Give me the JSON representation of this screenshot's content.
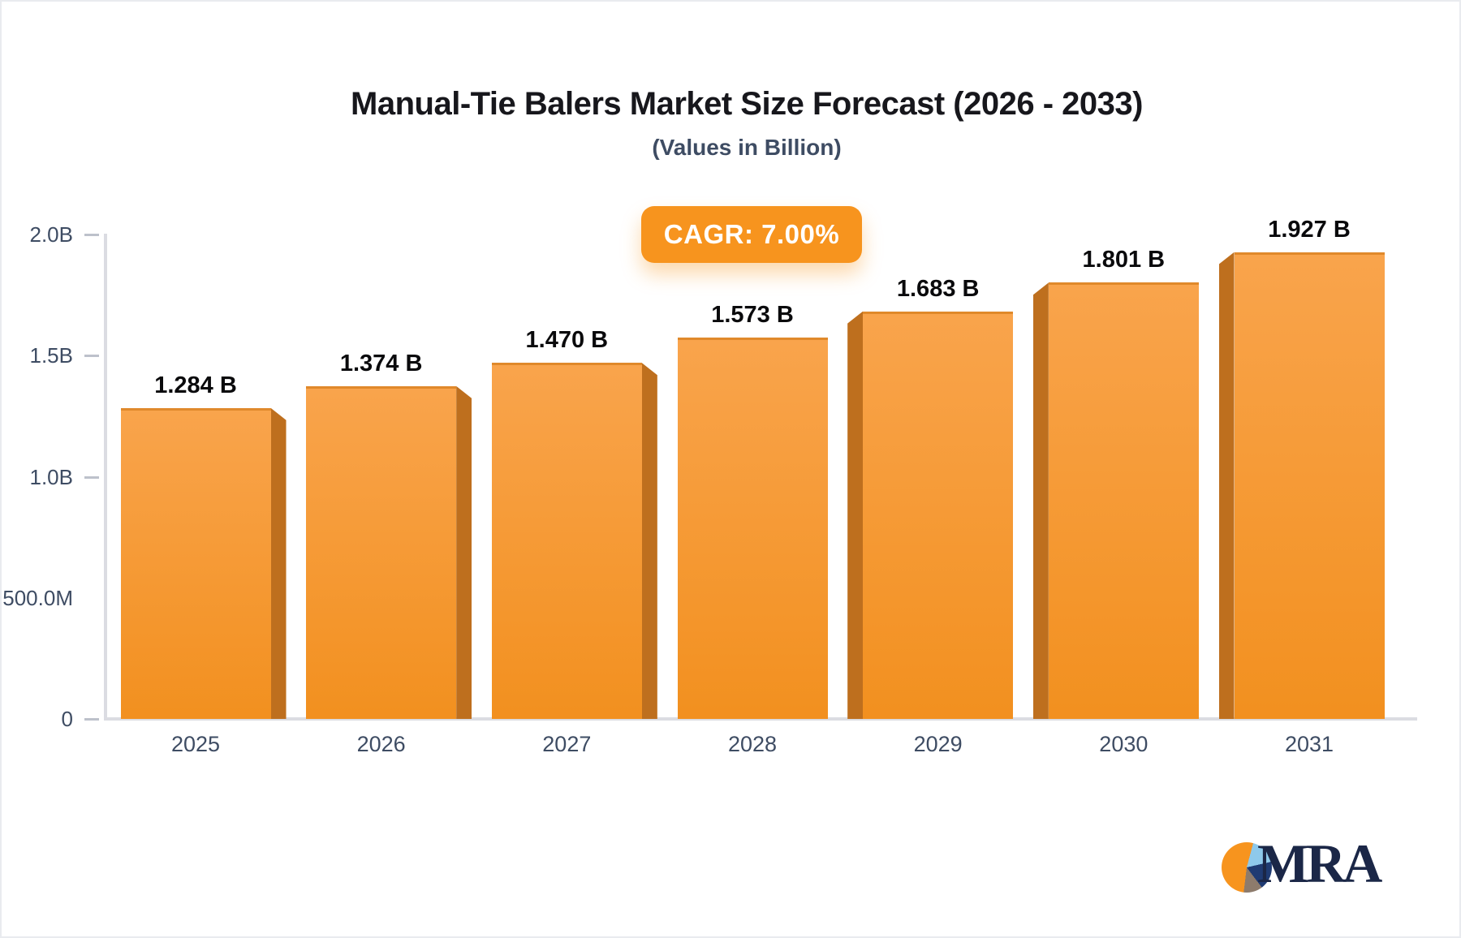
{
  "chart_data": {
    "type": "bar",
    "title": "Manual-Tie Balers Market Size Forecast (2026 - 2033)",
    "subtitle": "(Values in Billion)",
    "badge_label": "CAGR: 7.00%",
    "categories": [
      "2025",
      "2026",
      "2027",
      "2028",
      "2029",
      "2030",
      "2031"
    ],
    "values": [
      1.284,
      1.374,
      1.47,
      1.573,
      1.683,
      1.801,
      1.927
    ],
    "value_labels": [
      "1.284 B",
      "1.374 B",
      "1.470 B",
      "1.573 B",
      "1.683 B",
      "1.801 B",
      "1.927 B"
    ],
    "unit": "Billion USD",
    "y_ticks": [
      {
        "label": "2.0B",
        "value": 2.0,
        "dash": true
      },
      {
        "label": "1.5B",
        "value": 1.5,
        "dash": true
      },
      {
        "label": "1.0B",
        "value": 1.0,
        "dash": true
      },
      {
        "label": "500.0M",
        "value": 0.5,
        "dash": false
      },
      {
        "label": "0",
        "value": 0,
        "dash": true
      }
    ],
    "ylim": [
      0,
      2.0
    ],
    "grid": false,
    "legend_position": "none",
    "xlabel": "",
    "ylabel": ""
  },
  "colors": {
    "bar_face_top": "#f9a44c",
    "bar_face_bottom": "#f2901f",
    "bar_top_line": "#e0892b",
    "bar_side": "#be6f1e",
    "badge_bg": "#f7941e",
    "badge_text": "#ffffff",
    "title_text": "#17171c",
    "subtitle_text": "#3e4c63",
    "axis_label": "#3e4c63",
    "value_label": "#0a0a0c",
    "axis_line": "#dbdce2",
    "tick_dash": "#bdc1cb",
    "logo_navy": "#1b2747",
    "logo_orange": "#f7941e",
    "logo_lightblue": "#8ec9eb",
    "logo_darkblue": "#1f3b73",
    "logo_taupe": "#8d7b6c"
  },
  "logo": {
    "text": "MRA"
  }
}
